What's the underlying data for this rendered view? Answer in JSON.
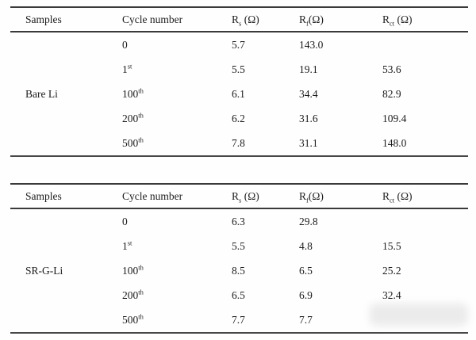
{
  "colors": {
    "background": "#fefefe",
    "text": "#1c1c1c",
    "rule": "#3a3a3a"
  },
  "tables": [
    {
      "sample": "Bare Li",
      "headers": {
        "samples": "Samples",
        "cycle": "Cycle number",
        "rs": {
          "base": "R",
          "sub": "s",
          "unit": " (Ω)"
        },
        "rf": {
          "base": "R",
          "sub": "f",
          "unit": "(Ω)"
        },
        "rct": {
          "base": "R",
          "sub": "ct",
          "unit": " (Ω)"
        }
      },
      "rows": [
        {
          "cycle": "0",
          "sup": "",
          "rs": "5.7",
          "rf": "143.0",
          "rct": ""
        },
        {
          "cycle": "1",
          "sup": "st",
          "rs": "5.5",
          "rf": "19.1",
          "rct": "53.6"
        },
        {
          "cycle": "100",
          "sup": "th",
          "rs": "6.1",
          "rf": "34.4",
          "rct": "82.9"
        },
        {
          "cycle": "200",
          "sup": "th",
          "rs": "6.2",
          "rf": "31.6",
          "rct": "109.4"
        },
        {
          "cycle": "500",
          "sup": "th",
          "rs": "7.8",
          "rf": "31.1",
          "rct": "148.0"
        }
      ]
    },
    {
      "sample": "SR-G-Li",
      "headers": {
        "samples": "Samples",
        "cycle": "Cycle number",
        "rs": {
          "base": "R",
          "sub": "s",
          "unit": " (Ω)"
        },
        "rf": {
          "base": "R",
          "sub": "f",
          "unit": "(Ω)"
        },
        "rct": {
          "base": "R",
          "sub": "ct",
          "unit": " (Ω)"
        }
      },
      "rows": [
        {
          "cycle": "0",
          "sup": "",
          "rs": "6.3",
          "rf": "29.8",
          "rct": ""
        },
        {
          "cycle": "1",
          "sup": "st",
          "rs": "5.5",
          "rf": "4.8",
          "rct": "15.5"
        },
        {
          "cycle": "100",
          "sup": "th",
          "rs": "8.5",
          "rf": "6.5",
          "rct": "25.2"
        },
        {
          "cycle": "200",
          "sup": "th",
          "rs": "6.5",
          "rf": "6.9",
          "rct": "32.4"
        },
        {
          "cycle": "500",
          "sup": "th",
          "rs": "7.7",
          "rf": "7.7",
          "rct": ""
        }
      ]
    }
  ]
}
